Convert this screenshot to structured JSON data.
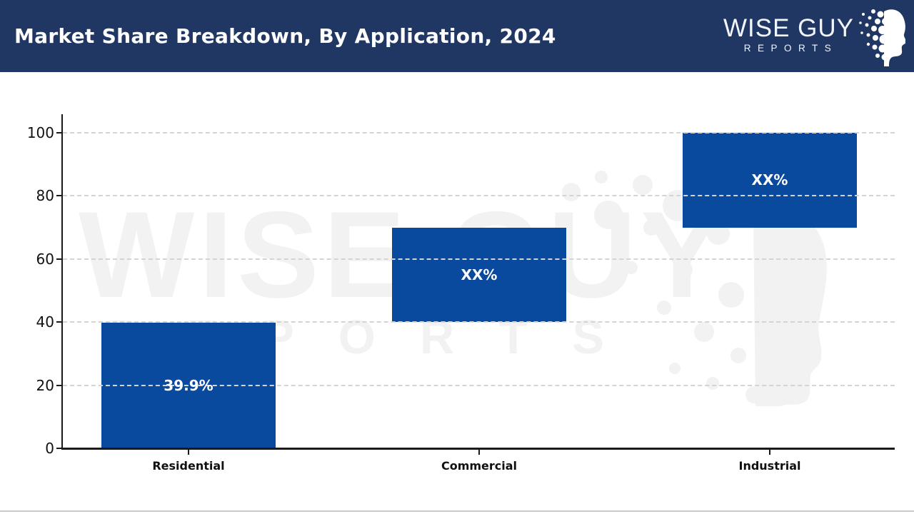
{
  "header": {
    "title": "Market Share Breakdown, By Application, 2024",
    "bg_color": "#203764",
    "logo": {
      "line1": "WISE GUY",
      "line2": "REPORTS"
    }
  },
  "watermark": {
    "line1": "WISE GUY",
    "line2": "REPORTS"
  },
  "chart_data": {
    "type": "bar",
    "subtype": "floating-waterfall",
    "title": "Market Share Breakdown, By Application, 2024",
    "categories": [
      "Residential",
      "Commercial",
      "Industrial"
    ],
    "segments": [
      {
        "category": "Residential",
        "start": 0,
        "end": 39.9,
        "label": "39.9%"
      },
      {
        "category": "Commercial",
        "start": 40,
        "end": 70,
        "label": "XX%"
      },
      {
        "category": "Industrial",
        "start": 70,
        "end": 100,
        "label": "XX%"
      }
    ],
    "xlabel": "",
    "ylabel": "",
    "ylim": [
      0,
      100
    ],
    "yticks": [
      0,
      20,
      40,
      60,
      80,
      100
    ],
    "grid": "horizontal dashed, drawn above bars",
    "legend": "none",
    "bar_color": "#0a4a9e",
    "bar_label_color": "#ffffff",
    "axis_color": "#1a1a1a"
  }
}
